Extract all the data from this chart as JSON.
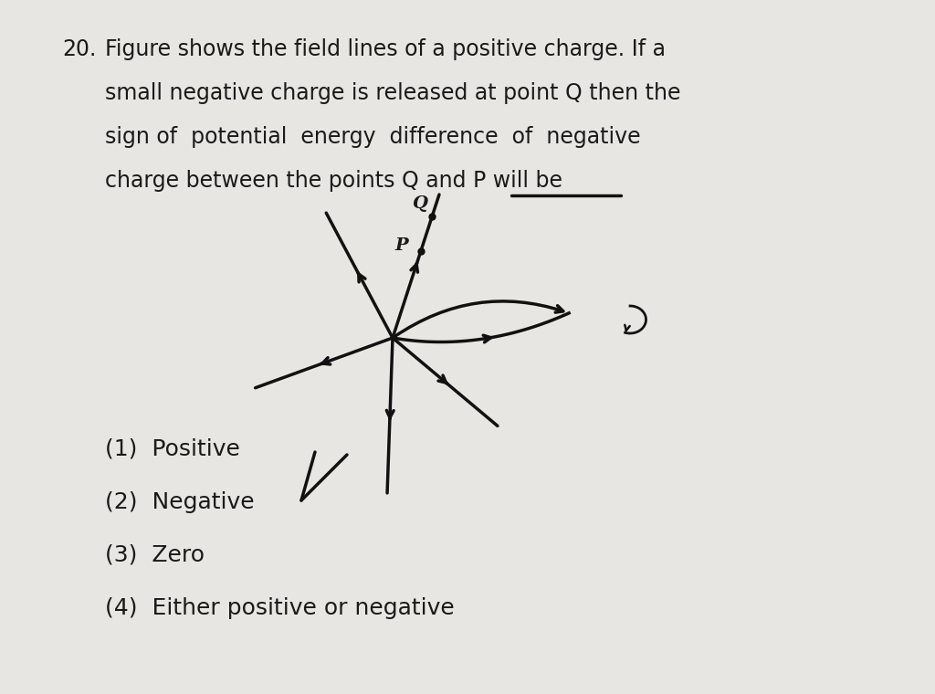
{
  "background_color": "#e8e6e3",
  "question_number": "20.",
  "question_text_lines": [
    "Figure shows the field lines of a positive charge. If a",
    "small negative charge is released at point Q then the",
    "sign of  potential  energy  difference  of  negative",
    "charge between the points Q and P will be"
  ],
  "options": [
    "(1)  Positive",
    "(2)  Negative",
    "(3)  Zero",
    "(4)  Either positive or negative"
  ],
  "text_color": "#1a1a1a",
  "font_size_question": 17,
  "font_size_options": 18,
  "label_Q": "Q",
  "label_P": "P",
  "line_color": "#111111",
  "bg_white": "#f0eeeb"
}
